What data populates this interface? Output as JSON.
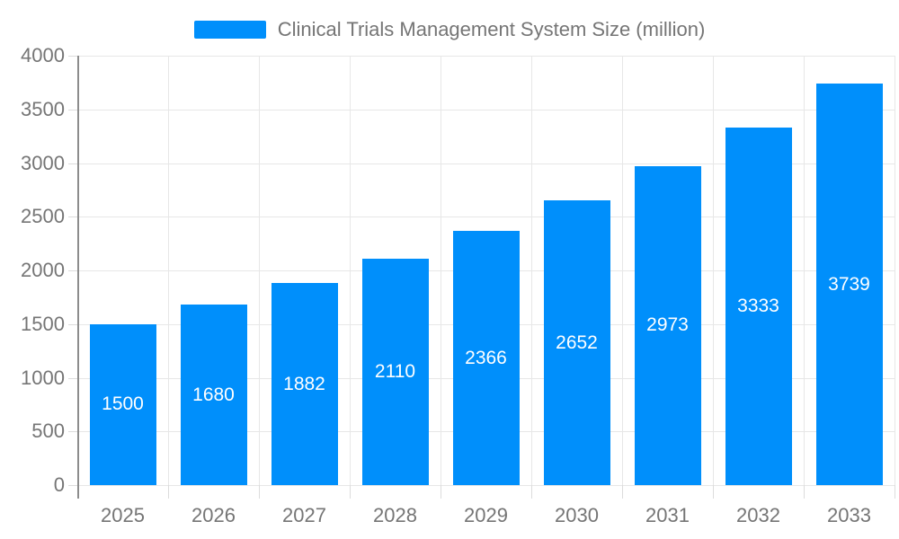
{
  "chart_data": {
    "type": "bar",
    "title": "Clinical Trials Management System Size (million)",
    "categories": [
      "2025",
      "2026",
      "2027",
      "2028",
      "2029",
      "2030",
      "2031",
      "2032",
      "2033"
    ],
    "values": [
      1500,
      1680,
      1882,
      2110,
      2366,
      2652,
      2973,
      3333,
      3739
    ],
    "value_labels": [
      "1500",
      "1680",
      "1882",
      "2110",
      "2366",
      "2652",
      "2973",
      "3333",
      "3739"
    ],
    "xlabel": "",
    "ylabel": "",
    "ylim": [
      0,
      4000
    ],
    "yticks": [
      0,
      500,
      1000,
      1500,
      2000,
      2500,
      3000,
      3500,
      4000
    ],
    "ytick_labels": [
      "0",
      "500",
      "1000",
      "1500",
      "2000",
      "2500",
      "3000",
      "3500",
      "4000"
    ],
    "grid": "horizontal-and-vertical",
    "legend_position": "top",
    "legend_entries": [
      "Clinical Trials Management System Size (million)"
    ]
  },
  "colors": {
    "bar": "#008FFB",
    "grid": "#e7e7e7",
    "axis_line": "#8c8c8c",
    "tick": "#dcdcdc",
    "axis_text": "#757575",
    "value_text": "#ffffff",
    "background": "#ffffff"
  }
}
